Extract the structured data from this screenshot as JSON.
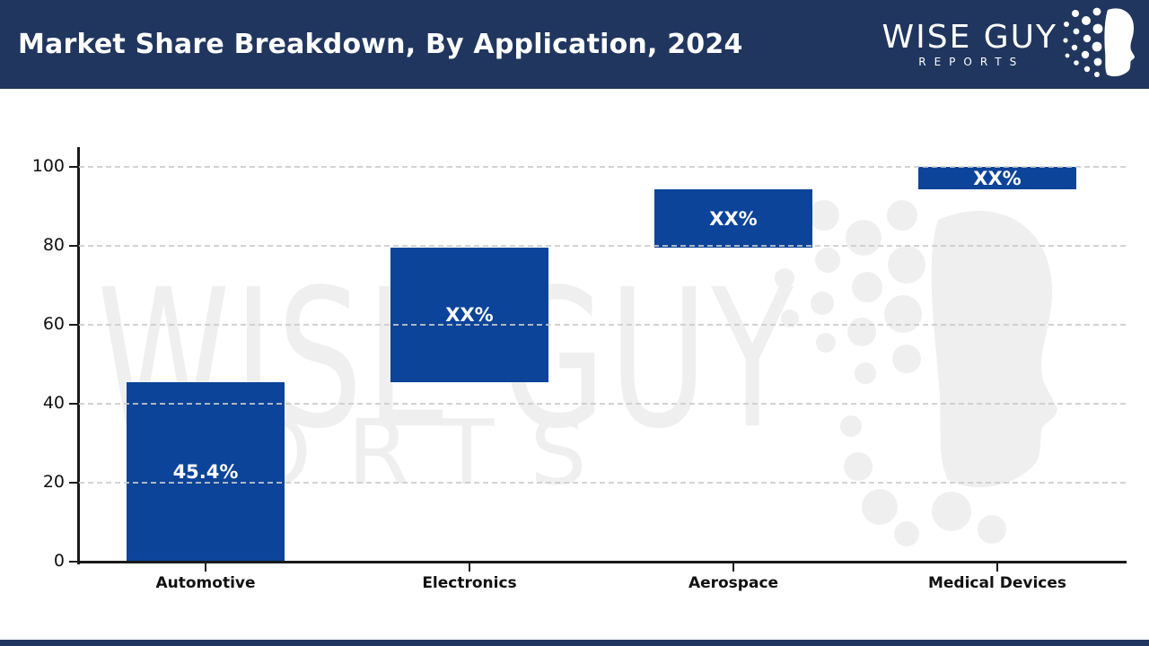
{
  "header": {
    "title": "Market Share Breakdown, By Application, 2024",
    "logo": {
      "line1": "WISE GUY",
      "line2": "REPORTS"
    }
  },
  "watermark": {
    "line1": "WISE GUY",
    "line2": "PORTS"
  },
  "colors": {
    "header_bg": "#20365f",
    "footer_bg": "#20365f",
    "bar_color": "#0b4499",
    "watermark_gray": "#efefef",
    "grid_gray": "#cbcbcb",
    "axis_black": "#1a1a1a",
    "title_white": "#ffffff",
    "bar_label_white": "#ffffff"
  },
  "chart_data": {
    "type": "bar",
    "subtype": "waterfall-floating-bars",
    "title": "Market Share Breakdown, By Application, 2024",
    "categories": [
      "Automotive",
      "Electronics",
      "Aerospace",
      "Medical Devices"
    ],
    "segments": [
      {
        "category": "Automotive",
        "start": 0,
        "end": 45.4,
        "label": "45.4%"
      },
      {
        "category": "Electronics",
        "start": 45.4,
        "end": 79.5,
        "label": "XX%"
      },
      {
        "category": "Aerospace",
        "start": 79.5,
        "end": 94.3,
        "label": "XX%"
      },
      {
        "category": "Medical Devices",
        "start": 94.3,
        "end": 100,
        "label": "XX%"
      }
    ],
    "yticks": [
      0,
      20,
      40,
      60,
      80,
      100
    ],
    "ylim": [
      0,
      105
    ],
    "xlabel": "",
    "ylabel": "",
    "grid": true,
    "grid_style": "dashed",
    "legend": "none",
    "bar_value_labels_inside": true
  }
}
